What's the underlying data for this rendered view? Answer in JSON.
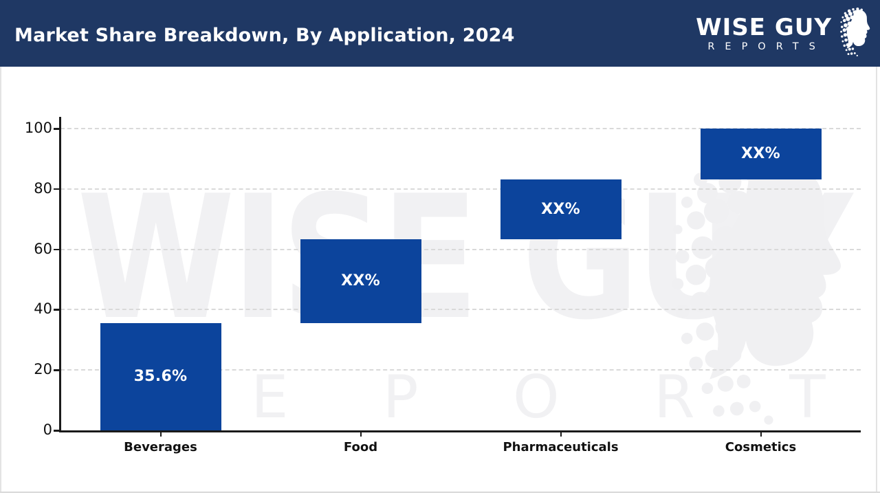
{
  "header": {
    "title": "Market Share Breakdown, By Application, 2024",
    "bg_color": "#1f3864",
    "logo": {
      "line1": "WISE GUY",
      "line2": "REPORTS",
      "face_icon": "dot-face"
    }
  },
  "watermark": {
    "line1": "WISE GUY",
    "line2": "R E P O R T S",
    "color": "#f1f1f3"
  },
  "chart_data": {
    "type": "bar",
    "subtype": "waterfall-floating-segments",
    "title": "Market Share Breakdown, By Application, 2024",
    "categories": [
      "Beverages",
      "Food",
      "Pharmaceuticals",
      "Cosmetics"
    ],
    "segments": [
      {
        "category": "Beverages",
        "start": 0,
        "end": 35.6,
        "label": "35.6%"
      },
      {
        "category": "Food",
        "start": 35.6,
        "end": 63.4,
        "label": "XX%"
      },
      {
        "category": "Pharmaceuticals",
        "start": 63.4,
        "end": 83.2,
        "label": "XX%"
      },
      {
        "category": "Cosmetics",
        "start": 83.2,
        "end": 100,
        "label": "XX%"
      }
    ],
    "yticks": [
      0,
      20,
      40,
      60,
      80,
      100
    ],
    "ylim": [
      0,
      104
    ],
    "xlabel": "",
    "ylabel": "",
    "grid": "horizontal-dashed",
    "legend": "none",
    "bar_color": "#0c449c",
    "grid_color": "#d9d9d9",
    "axis_color": "#1a1a1a",
    "value_label_color": "#ffffff"
  }
}
